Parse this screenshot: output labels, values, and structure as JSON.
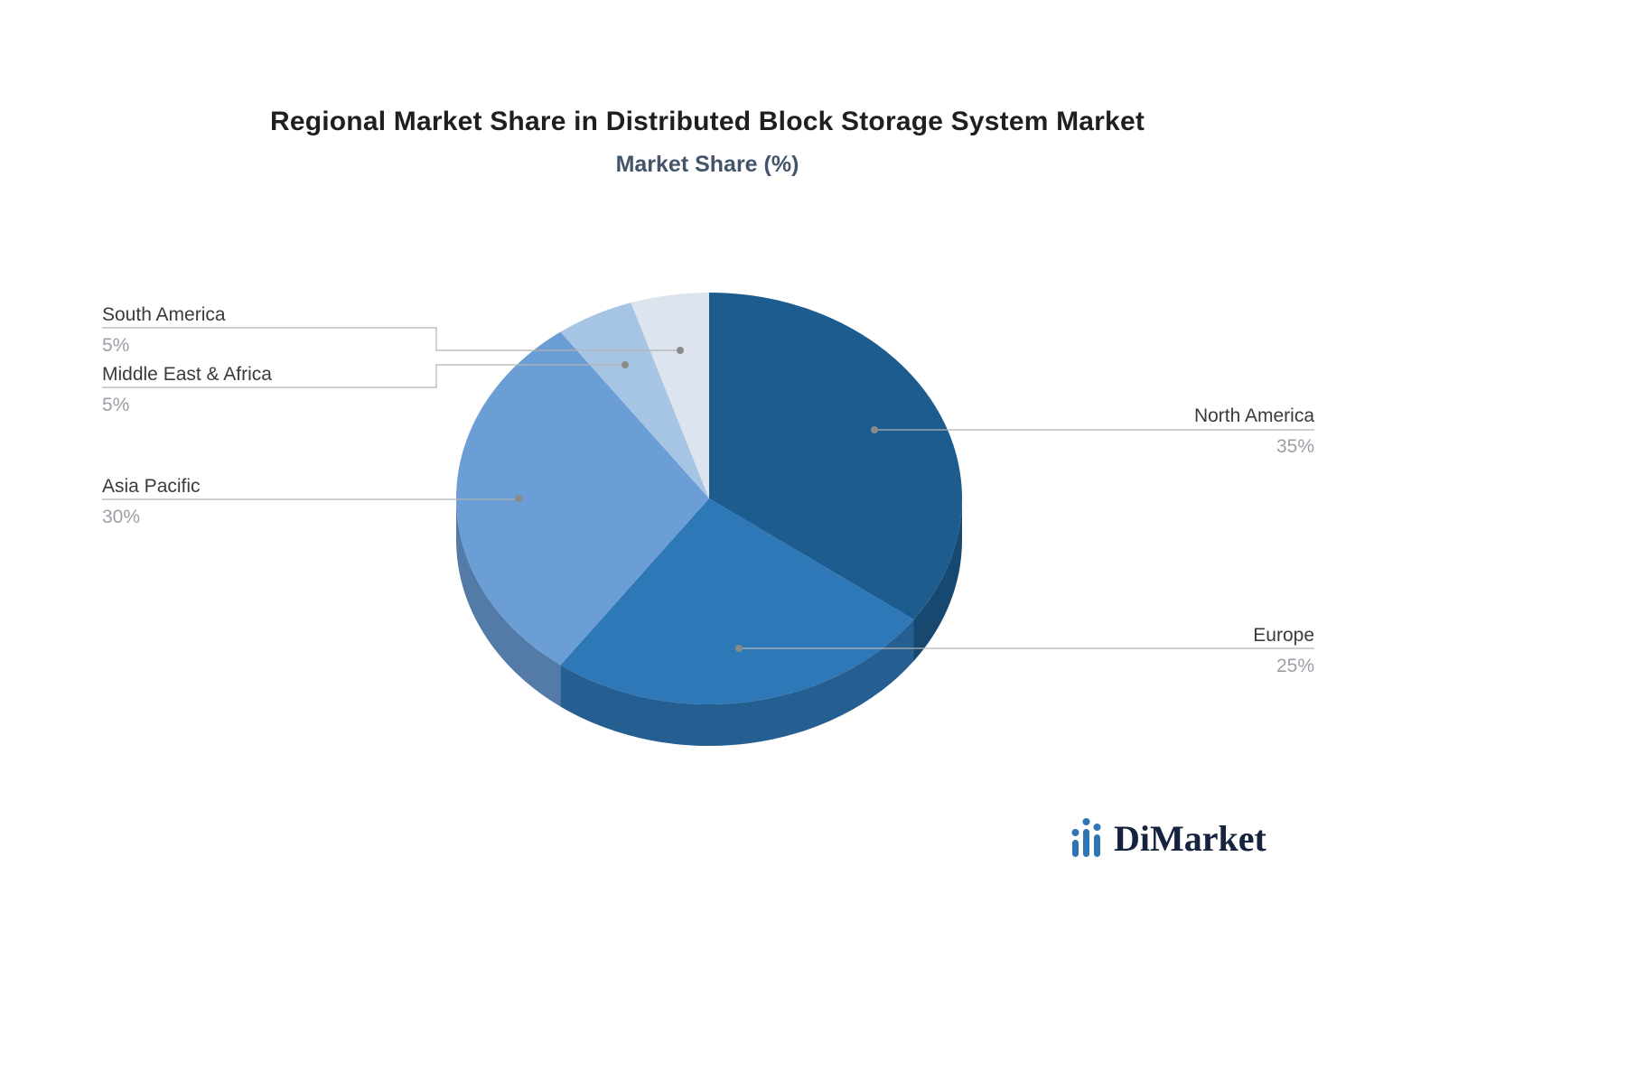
{
  "chart": {
    "title": "Regional Market Share in Distributed Block Storage System Market",
    "subtitle": "Market Share (%)"
  },
  "branding": {
    "logo_text": "DiMarket",
    "logo_icon": "bar-chart-icon",
    "logo_text_color": "#15233f",
    "logo_icon_color": "#2e75b6"
  },
  "chart_data": {
    "type": "pie",
    "style": "3d-pie",
    "title": "Regional Market Share in Distributed Block Storage System Market",
    "subtitle": "Market Share (%)",
    "unit": "%",
    "legend_position": "none",
    "start_angle_deg": 0,
    "direction": "clockwise",
    "slices": [
      {
        "label": "North America",
        "value": 35,
        "value_label": "35%",
        "color": "#1d5c8f"
      },
      {
        "label": "Europe",
        "value": 25,
        "value_label": "25%",
        "color": "#2f78b8"
      },
      {
        "label": "Asia Pacific",
        "value": 30,
        "value_label": "30%",
        "color": "#6c9ed6"
      },
      {
        "label": "Middle East & Africa",
        "value": 5,
        "value_label": "5%",
        "color": "#a6c5e5"
      },
      {
        "label": "South America",
        "value": 5,
        "value_label": "5%",
        "color": "#dde4ed"
      }
    ]
  }
}
